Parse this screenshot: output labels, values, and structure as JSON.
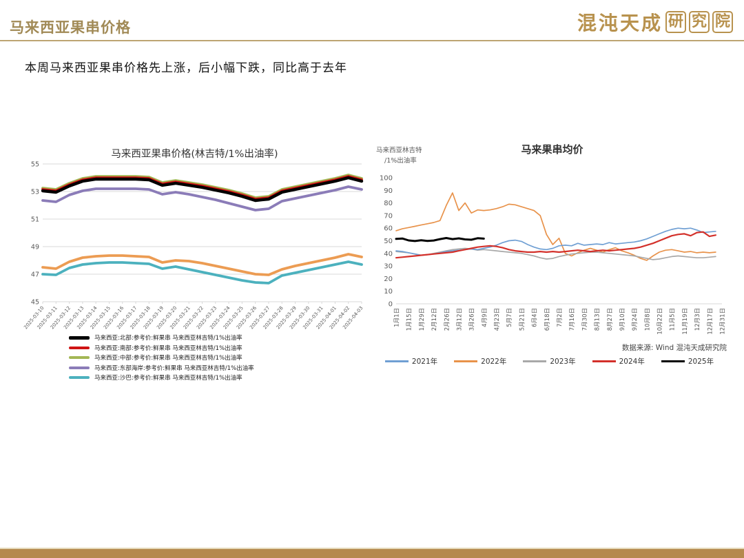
{
  "page": {
    "accent_gold": "#a18a56",
    "logo_gold": "#b8924e",
    "bottom_bar_color": "#b5894d",
    "grid_color": "#d9d9d9",
    "tick_text_color": "#595959"
  },
  "header": {
    "title": "马来西亚果串价格"
  },
  "logo": {
    "prefix": "混沌天成",
    "boxed": [
      "研",
      "究",
      "院"
    ]
  },
  "subtitle": "本周马来西亚果串价格先上涨，后小幅下跌，同比高于去年",
  "chart_data": [
    {
      "type": "line",
      "title": "马来西亚果串价格(林吉特/1%出油率)",
      "ylim": [
        45,
        55
      ],
      "yticks": [
        45,
        47,
        49,
        51,
        53,
        55
      ],
      "grid": true,
      "legend_position": "bottom-left",
      "categories": [
        "2025-03-10",
        "2025-03-11",
        "2025-03-12",
        "2025-03-13",
        "2025-03-14",
        "2025-03-15",
        "2025-03-16",
        "2025-03-17",
        "2025-03-18",
        "2025-03-19",
        "2025-03-20",
        "2025-03-21",
        "2025-03-22",
        "2025-03-23",
        "2025-03-24",
        "2025-03-25",
        "2025-03-26",
        "2025-03-27",
        "2025-03-28",
        "2025-03-29",
        "2025-03-30",
        "2025-03-31",
        "2025-04-01",
        "2025-04-02",
        "2025-04-03"
      ],
      "series": [
        {
          "name": "马来西亚:中部:参考价:鲜果串 马来西亚林吉特/1%出油率",
          "color": "#a3b755",
          "legend_order": 2,
          "values": [
            53.25,
            53.15,
            53.6,
            53.95,
            54.1,
            54.1,
            54.1,
            54.1,
            54.05,
            53.65,
            53.8,
            53.65,
            53.5,
            53.3,
            53.1,
            52.85,
            52.55,
            52.65,
            53.15,
            53.35,
            53.55,
            53.75,
            53.95,
            54.2,
            53.95
          ]
        },
        {
          "name": "马来西亚:南部:参考价:鲜果串 马来西亚林吉特/1%出油率",
          "color": "#cf1414",
          "legend_order": 1,
          "values": [
            53.15,
            53.05,
            53.5,
            53.85,
            54.0,
            54.0,
            54.0,
            54.0,
            53.95,
            53.55,
            53.7,
            53.55,
            53.4,
            53.2,
            53.0,
            52.75,
            52.45,
            52.55,
            53.05,
            53.25,
            53.45,
            53.65,
            53.85,
            54.1,
            53.85
          ]
        },
        {
          "name": "马来西亚:北部:参考价:鲜果串 马来西亚林吉特/1%出油率",
          "color": "#000000",
          "legend_order": 0,
          "width": 4.4,
          "values": [
            53.05,
            52.95,
            53.4,
            53.75,
            53.9,
            53.9,
            53.9,
            53.9,
            53.85,
            53.45,
            53.6,
            53.45,
            53.3,
            53.1,
            52.9,
            52.65,
            52.35,
            52.45,
            52.95,
            53.15,
            53.35,
            53.55,
            53.75,
            54.0,
            53.75
          ]
        },
        {
          "name": "马来西亚:东部海岸:参考价:鲜果串 马来西亚林吉特/1%出油率",
          "color": "#8b7cb8",
          "legend_order": 3,
          "values": [
            52.35,
            52.25,
            52.75,
            53.05,
            53.2,
            53.2,
            53.2,
            53.2,
            53.15,
            52.8,
            52.95,
            52.8,
            52.6,
            52.4,
            52.15,
            51.9,
            51.65,
            51.75,
            52.3,
            52.5,
            52.7,
            52.9,
            53.1,
            53.35,
            53.15
          ]
        },
        {
          "name": "",
          "color": "#ec9c53",
          "legend_order": null,
          "values": [
            47.5,
            47.4,
            47.9,
            48.2,
            48.3,
            48.35,
            48.35,
            48.3,
            48.25,
            47.85,
            48.0,
            47.95,
            47.8,
            47.6,
            47.4,
            47.2,
            47.0,
            46.95,
            47.35,
            47.6,
            47.8,
            48.0,
            48.2,
            48.45,
            48.25
          ]
        },
        {
          "name": "马来西亚:沙巴:参考价:鲜果串 马来西亚林吉特/1%出油率",
          "color": "#4cb1be",
          "legend_order": 4,
          "values": [
            47.0,
            46.95,
            47.45,
            47.7,
            47.8,
            47.85,
            47.85,
            47.8,
            47.75,
            47.4,
            47.55,
            47.35,
            47.15,
            46.95,
            46.75,
            46.55,
            46.4,
            46.35,
            46.9,
            47.1,
            47.3,
            47.5,
            47.7,
            47.9,
            47.7
          ]
        }
      ]
    },
    {
      "type": "line",
      "title": "马来果串均价",
      "unit_label": [
        "马来西亚林吉特",
        "/1%出油率"
      ],
      "source": "数据来源: Wind  混沌天成研究院",
      "ylim": [
        0,
        100
      ],
      "yticks": [
        0,
        10,
        20,
        30,
        40,
        50,
        60,
        70,
        80,
        90,
        100
      ],
      "grid": false,
      "legend_position": "bottom",
      "x_tick_labels": [
        "1月1日",
        "1月15日",
        "1月29日",
        "2月12日",
        "2月26日",
        "3月12日",
        "3月26日",
        "4月9日",
        "4月23日",
        "5月7日",
        "5月21日",
        "6月4日",
        "6月18日",
        "7月2日",
        "7月16日",
        "7月30日",
        "8月13日",
        "8月27日",
        "9月10日",
        "9月24日",
        "10月8日",
        "10月22日",
        "11月5日",
        "11月19日",
        "12月3日",
        "12月17日",
        "12月31日"
      ],
      "x_tick_step_days": 14,
      "x_max_day": 364,
      "x_point_step_days": 7,
      "series": [
        {
          "name": "2022年",
          "color": "#e8924a",
          "legend_order": 1,
          "values": [
            58,
            59.5,
            60.5,
            61.5,
            62.5,
            63.5,
            64.5,
            66,
            78,
            88,
            74,
            80,
            72,
            74.5,
            74,
            74.5,
            75.5,
            77,
            79,
            78.5,
            77,
            75.5,
            74,
            70,
            55,
            47,
            52,
            40,
            38,
            40.5,
            42.5,
            44,
            42.5,
            41,
            43,
            44.5,
            42,
            40.5,
            38.5,
            36,
            34.5,
            38,
            41,
            42.5,
            43,
            42,
            41,
            41.5,
            40.5,
            41,
            40.5,
            41
          ]
        },
        {
          "name": "2023年",
          "color": "#a8a8a8",
          "legend_order": 2,
          "values": [
            41.5,
            41,
            40.5,
            39.5,
            38.5,
            39,
            40,
            41,
            42,
            43,
            43.5,
            44,
            43.5,
            42.5,
            43,
            42.5,
            42,
            41.5,
            41,
            40.5,
            40,
            39,
            38,
            36.5,
            35.5,
            36,
            37.5,
            38.5,
            39.5,
            40,
            40.5,
            41,
            41,
            40.5,
            40,
            39.5,
            39,
            38.5,
            38,
            37,
            36,
            35,
            35.5,
            36.5,
            37.5,
            38,
            37.5,
            37,
            36.5,
            36.5,
            37,
            37.5
          ]
        },
        {
          "name": "2021年",
          "color": "#6f9fd3",
          "legend_order": 0,
          "values": [
            42,
            41.5,
            40.5,
            39.5,
            38.5,
            39,
            39.5,
            40.5,
            41.5,
            42,
            42.5,
            43,
            43.5,
            43,
            44,
            45,
            46.5,
            48.5,
            50,
            50.5,
            49.5,
            47,
            45,
            43.5,
            43,
            44,
            46,
            46.5,
            46,
            48,
            46.5,
            47,
            47.5,
            47,
            48.5,
            47.5,
            48,
            48.5,
            49,
            50,
            51.5,
            53.5,
            55.5,
            57.5,
            59,
            60,
            59.5,
            60,
            58.5,
            56.5,
            57,
            57.5
          ]
        },
        {
          "name": "2024年",
          "color": "#d3302a",
          "legend_order": 3,
          "width": 2.2,
          "values": [
            36.5,
            37,
            37.5,
            38,
            38.5,
            39,
            39.5,
            40,
            40.5,
            41,
            42,
            43,
            44,
            45,
            45.5,
            46,
            45.5,
            44.5,
            43,
            42,
            41.5,
            41,
            41,
            41.5,
            41,
            41.5,
            41,
            41.5,
            42,
            42.5,
            42,
            41.5,
            42,
            42.5,
            42,
            42.5,
            43,
            43.5,
            44,
            45,
            46.5,
            48,
            50,
            52,
            54,
            55,
            55.5,
            54,
            56.5,
            57,
            53.5,
            54.5
          ]
        },
        {
          "name": "2025年",
          "color": "#000000",
          "legend_order": 4,
          "width": 3,
          "values": [
            51.5,
            51.8,
            50.3,
            49.8,
            50.4,
            49.9,
            50.2,
            51.3,
            52.2,
            51.3,
            51.9,
            51.1,
            50.8,
            52.0,
            51.7
          ]
        }
      ]
    }
  ]
}
